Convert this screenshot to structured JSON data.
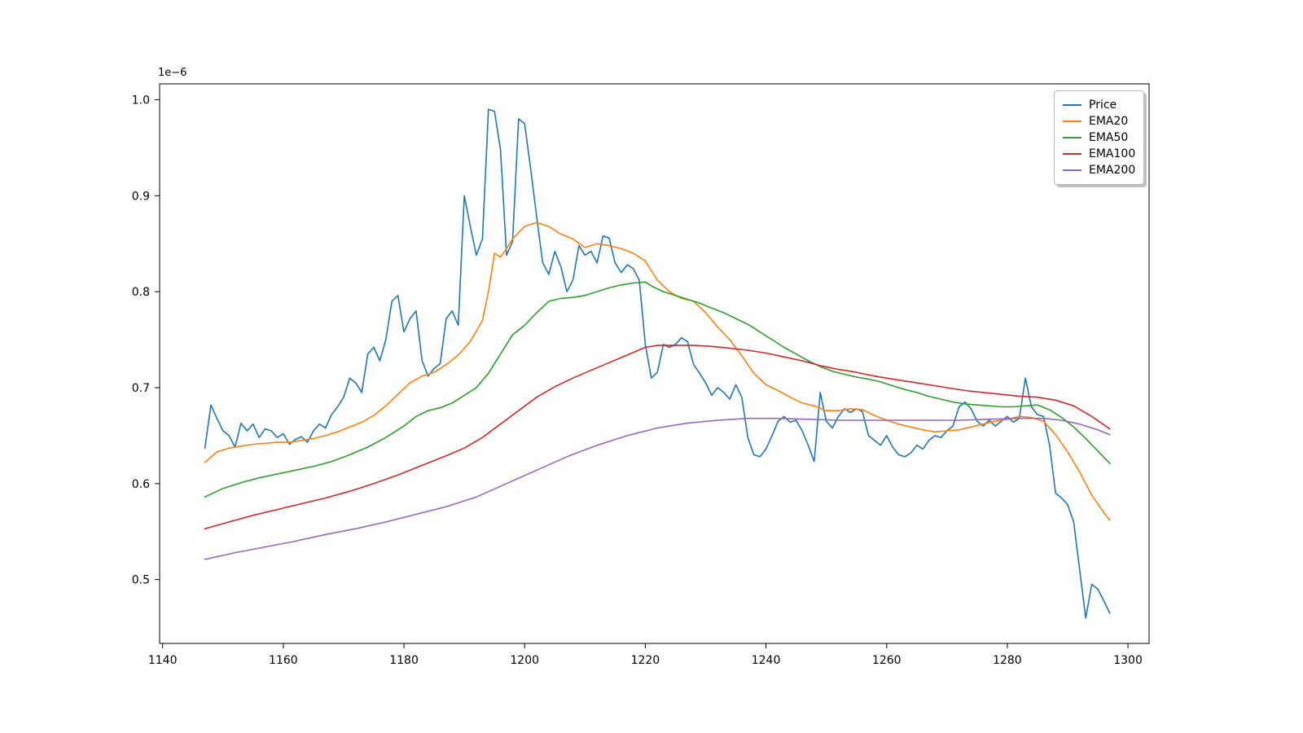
{
  "chart_data": {
    "type": "line",
    "title": "",
    "xlabel": "",
    "ylabel": "",
    "y_offset_label": "1e−6",
    "xlim": [
      1139.5,
      1303.5
    ],
    "ylim": [
      0.4335,
      1.0165
    ],
    "xticks": [
      1140,
      1160,
      1180,
      1200,
      1220,
      1240,
      1260,
      1280,
      1300
    ],
    "yticks": [
      0.5,
      0.6,
      0.7,
      0.8,
      0.9,
      1.0
    ],
    "grid": false,
    "legend_position": "upper right",
    "series": [
      {
        "name": "Price",
        "color": "#1f77b4",
        "x0": 1147,
        "dx": 1,
        "values": [
          0.637,
          0.682,
          0.668,
          0.655,
          0.65,
          0.638,
          0.663,
          0.655,
          0.662,
          0.648,
          0.657,
          0.655,
          0.648,
          0.652,
          0.641,
          0.646,
          0.649,
          0.643,
          0.655,
          0.662,
          0.658,
          0.672,
          0.68,
          0.69,
          0.71,
          0.705,
          0.695,
          0.735,
          0.742,
          0.728,
          0.75,
          0.79,
          0.796,
          0.758,
          0.772,
          0.78,
          0.728,
          0.712,
          0.72,
          0.725,
          0.772,
          0.78,
          0.765,
          0.9,
          0.868,
          0.838,
          0.855,
          0.99,
          0.988,
          0.948,
          0.838,
          0.852,
          0.98,
          0.975,
          0.928,
          0.878,
          0.83,
          0.818,
          0.842,
          0.826,
          0.8,
          0.812,
          0.848,
          0.838,
          0.842,
          0.83,
          0.858,
          0.856,
          0.83,
          0.82,
          0.828,
          0.824,
          0.812,
          0.745,
          0.71,
          0.716,
          0.745,
          0.742,
          0.745,
          0.752,
          0.748,
          0.724,
          0.715,
          0.705,
          0.692,
          0.7,
          0.695,
          0.688,
          0.703,
          0.69,
          0.648,
          0.63,
          0.628,
          0.636,
          0.65,
          0.665,
          0.67,
          0.664,
          0.666,
          0.655,
          0.64,
          0.623,
          0.695,
          0.665,
          0.658,
          0.67,
          0.678,
          0.674,
          0.678,
          0.675,
          0.65,
          0.645,
          0.64,
          0.65,
          0.638,
          0.63,
          0.628,
          0.632,
          0.64,
          0.636,
          0.645,
          0.65,
          0.648,
          0.655,
          0.66,
          0.68,
          0.685,
          0.678,
          0.665,
          0.66,
          0.666,
          0.66,
          0.665,
          0.67,
          0.664,
          0.668,
          0.71,
          0.68,
          0.672,
          0.67,
          0.64,
          0.59,
          0.585,
          0.578,
          0.56,
          0.51,
          0.46,
          0.495,
          0.49,
          0.478,
          0.465
        ]
      },
      {
        "name": "EMA20",
        "color": "#ff7f0e",
        "points": [
          [
            1147,
            0.622
          ],
          [
            1149,
            0.633
          ],
          [
            1151,
            0.637
          ],
          [
            1153,
            0.639
          ],
          [
            1155,
            0.641
          ],
          [
            1157,
            0.642
          ],
          [
            1159,
            0.643
          ],
          [
            1161,
            0.643
          ],
          [
            1163,
            0.645
          ],
          [
            1165,
            0.647
          ],
          [
            1167,
            0.65
          ],
          [
            1169,
            0.654
          ],
          [
            1171,
            0.659
          ],
          [
            1173,
            0.664
          ],
          [
            1175,
            0.671
          ],
          [
            1177,
            0.681
          ],
          [
            1179,
            0.693
          ],
          [
            1181,
            0.705
          ],
          [
            1183,
            0.712
          ],
          [
            1185,
            0.716
          ],
          [
            1187,
            0.724
          ],
          [
            1189,
            0.734
          ],
          [
            1191,
            0.748
          ],
          [
            1193,
            0.77
          ],
          [
            1194,
            0.8
          ],
          [
            1195,
            0.84
          ],
          [
            1196,
            0.836
          ],
          [
            1197,
            0.845
          ],
          [
            1198,
            0.855
          ],
          [
            1200,
            0.868
          ],
          [
            1202,
            0.872
          ],
          [
            1204,
            0.868
          ],
          [
            1206,
            0.86
          ],
          [
            1208,
            0.855
          ],
          [
            1210,
            0.846
          ],
          [
            1212,
            0.85
          ],
          [
            1214,
            0.848
          ],
          [
            1216,
            0.845
          ],
          [
            1218,
            0.84
          ],
          [
            1220,
            0.832
          ],
          [
            1222,
            0.812
          ],
          [
            1224,
            0.8
          ],
          [
            1226,
            0.793
          ],
          [
            1228,
            0.79
          ],
          [
            1230,
            0.778
          ],
          [
            1232,
            0.763
          ],
          [
            1234,
            0.75
          ],
          [
            1236,
            0.733
          ],
          [
            1238,
            0.715
          ],
          [
            1240,
            0.703
          ],
          [
            1242,
            0.697
          ],
          [
            1244,
            0.69
          ],
          [
            1246,
            0.684
          ],
          [
            1248,
            0.681
          ],
          [
            1250,
            0.676
          ],
          [
            1252,
            0.676
          ],
          [
            1254,
            0.678
          ],
          [
            1256,
            0.677
          ],
          [
            1258,
            0.671
          ],
          [
            1260,
            0.666
          ],
          [
            1262,
            0.662
          ],
          [
            1264,
            0.659
          ],
          [
            1266,
            0.656
          ],
          [
            1268,
            0.654
          ],
          [
            1270,
            0.655
          ],
          [
            1272,
            0.656
          ],
          [
            1274,
            0.659
          ],
          [
            1276,
            0.662
          ],
          [
            1278,
            0.665
          ],
          [
            1280,
            0.667
          ],
          [
            1282,
            0.67
          ],
          [
            1284,
            0.669
          ],
          [
            1286,
            0.665
          ],
          [
            1288,
            0.651
          ],
          [
            1290,
            0.633
          ],
          [
            1292,
            0.612
          ],
          [
            1294,
            0.588
          ],
          [
            1296,
            0.57
          ],
          [
            1297,
            0.562
          ]
        ]
      },
      {
        "name": "EMA50",
        "color": "#2ca02c",
        "points": [
          [
            1147,
            0.586
          ],
          [
            1150,
            0.595
          ],
          [
            1153,
            0.601
          ],
          [
            1156,
            0.606
          ],
          [
            1159,
            0.61
          ],
          [
            1162,
            0.614
          ],
          [
            1165,
            0.618
          ],
          [
            1168,
            0.623
          ],
          [
            1171,
            0.63
          ],
          [
            1174,
            0.638
          ],
          [
            1177,
            0.648
          ],
          [
            1180,
            0.66
          ],
          [
            1182,
            0.67
          ],
          [
            1184,
            0.676
          ],
          [
            1186,
            0.679
          ],
          [
            1188,
            0.684
          ],
          [
            1190,
            0.692
          ],
          [
            1192,
            0.7
          ],
          [
            1194,
            0.715
          ],
          [
            1196,
            0.735
          ],
          [
            1198,
            0.755
          ],
          [
            1200,
            0.765
          ],
          [
            1202,
            0.778
          ],
          [
            1204,
            0.79
          ],
          [
            1206,
            0.793
          ],
          [
            1208,
            0.794
          ],
          [
            1210,
            0.796
          ],
          [
            1212,
            0.8
          ],
          [
            1214,
            0.804
          ],
          [
            1216,
            0.807
          ],
          [
            1218,
            0.809
          ],
          [
            1220,
            0.81
          ],
          [
            1221,
            0.806
          ],
          [
            1223,
            0.8
          ],
          [
            1225,
            0.796
          ],
          [
            1227,
            0.792
          ],
          [
            1229,
            0.788
          ],
          [
            1231,
            0.783
          ],
          [
            1233,
            0.778
          ],
          [
            1235,
            0.772
          ],
          [
            1237,
            0.766
          ],
          [
            1239,
            0.758
          ],
          [
            1241,
            0.75
          ],
          [
            1243,
            0.742
          ],
          [
            1245,
            0.735
          ],
          [
            1247,
            0.728
          ],
          [
            1249,
            0.722
          ],
          [
            1251,
            0.717
          ],
          [
            1253,
            0.714
          ],
          [
            1255,
            0.711
          ],
          [
            1257,
            0.709
          ],
          [
            1259,
            0.706
          ],
          [
            1261,
            0.702
          ],
          [
            1263,
            0.698
          ],
          [
            1265,
            0.695
          ],
          [
            1267,
            0.691
          ],
          [
            1269,
            0.688
          ],
          [
            1271,
            0.685
          ],
          [
            1273,
            0.683
          ],
          [
            1275,
            0.682
          ],
          [
            1277,
            0.681
          ],
          [
            1279,
            0.68
          ],
          [
            1281,
            0.68
          ],
          [
            1283,
            0.681
          ],
          [
            1285,
            0.682
          ],
          [
            1287,
            0.677
          ],
          [
            1289,
            0.669
          ],
          [
            1291,
            0.659
          ],
          [
            1293,
            0.647
          ],
          [
            1295,
            0.634
          ],
          [
            1297,
            0.621
          ]
        ]
      },
      {
        "name": "EMA100",
        "color": "#d62728",
        "points": [
          [
            1147,
            0.553
          ],
          [
            1151,
            0.56
          ],
          [
            1155,
            0.567
          ],
          [
            1159,
            0.573
          ],
          [
            1163,
            0.579
          ],
          [
            1167,
            0.585
          ],
          [
            1171,
            0.592
          ],
          [
            1175,
            0.6
          ],
          [
            1179,
            0.609
          ],
          [
            1183,
            0.619
          ],
          [
            1187,
            0.629
          ],
          [
            1190,
            0.637
          ],
          [
            1193,
            0.648
          ],
          [
            1196,
            0.662
          ],
          [
            1199,
            0.676
          ],
          [
            1202,
            0.69
          ],
          [
            1205,
            0.701
          ],
          [
            1208,
            0.71
          ],
          [
            1211,
            0.718
          ],
          [
            1214,
            0.726
          ],
          [
            1217,
            0.734
          ],
          [
            1220,
            0.742
          ],
          [
            1222,
            0.744
          ],
          [
            1225,
            0.744
          ],
          [
            1228,
            0.744
          ],
          [
            1231,
            0.743
          ],
          [
            1234,
            0.741
          ],
          [
            1237,
            0.739
          ],
          [
            1240,
            0.736
          ],
          [
            1243,
            0.732
          ],
          [
            1246,
            0.728
          ],
          [
            1249,
            0.723
          ],
          [
            1252,
            0.719
          ],
          [
            1255,
            0.716
          ],
          [
            1258,
            0.712
          ],
          [
            1261,
            0.709
          ],
          [
            1264,
            0.706
          ],
          [
            1267,
            0.703
          ],
          [
            1270,
            0.7
          ],
          [
            1273,
            0.697
          ],
          [
            1276,
            0.695
          ],
          [
            1279,
            0.693
          ],
          [
            1282,
            0.691
          ],
          [
            1285,
            0.69
          ],
          [
            1288,
            0.687
          ],
          [
            1291,
            0.681
          ],
          [
            1294,
            0.67
          ],
          [
            1297,
            0.657
          ]
        ]
      },
      {
        "name": "EMA200",
        "color": "#9467bd",
        "points": [
          [
            1147,
            0.521
          ],
          [
            1152,
            0.528
          ],
          [
            1157,
            0.534
          ],
          [
            1162,
            0.54
          ],
          [
            1167,
            0.547
          ],
          [
            1172,
            0.553
          ],
          [
            1177,
            0.56
          ],
          [
            1182,
            0.568
          ],
          [
            1187,
            0.576
          ],
          [
            1192,
            0.586
          ],
          [
            1197,
            0.6
          ],
          [
            1202,
            0.614
          ],
          [
            1207,
            0.628
          ],
          [
            1212,
            0.64
          ],
          [
            1217,
            0.65
          ],
          [
            1222,
            0.658
          ],
          [
            1227,
            0.663
          ],
          [
            1232,
            0.666
          ],
          [
            1237,
            0.668
          ],
          [
            1242,
            0.668
          ],
          [
            1247,
            0.667
          ],
          [
            1252,
            0.666
          ],
          [
            1257,
            0.666
          ],
          [
            1262,
            0.666
          ],
          [
            1267,
            0.666
          ],
          [
            1272,
            0.666
          ],
          [
            1277,
            0.667
          ],
          [
            1282,
            0.668
          ],
          [
            1286,
            0.668
          ],
          [
            1289,
            0.666
          ],
          [
            1292,
            0.662
          ],
          [
            1295,
            0.656
          ],
          [
            1297,
            0.651
          ]
        ]
      }
    ]
  }
}
